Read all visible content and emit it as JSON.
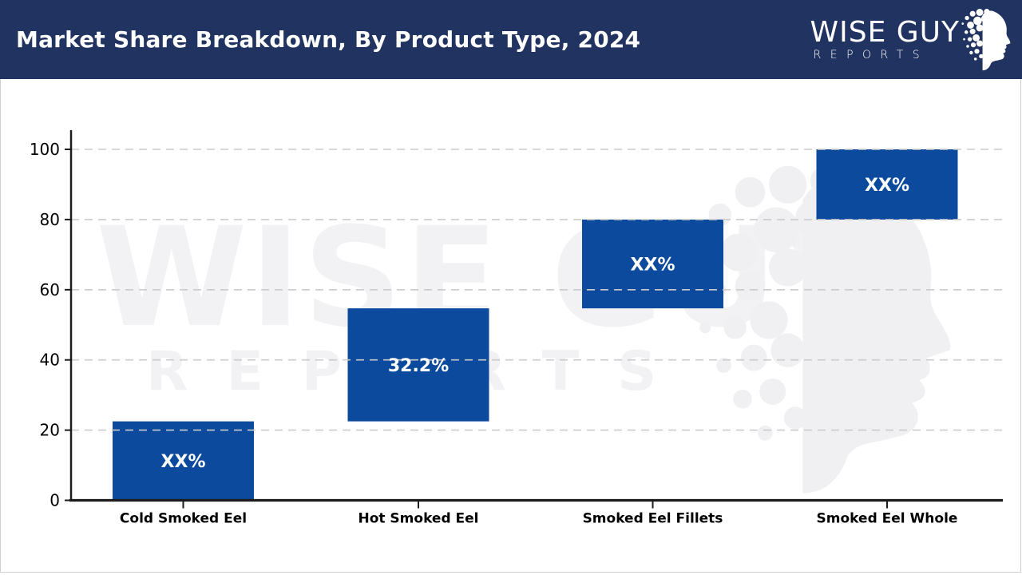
{
  "header": {
    "title": "Market Share Breakdown, By Product Type, 2024",
    "bg_color": "#213360",
    "logo": {
      "line1": "WISE GUY",
      "line2": "REPORTS",
      "head_icon": "dotted-head-profile"
    }
  },
  "watermark": {
    "line1": "WISE GUY",
    "line2": "REPORTS",
    "head_icon": "dotted-head-profile"
  },
  "chart_data": {
    "type": "bar",
    "subtype": "waterfall (floating segment bars summing to 100%)",
    "title": "Market Share Breakdown, By Product Type, 2024",
    "categories": [
      "Cold Smoked Eel",
      "Hot Smoked Eel",
      "Smoked Eel Fillets",
      "Smoked Eel Whole"
    ],
    "series": [
      {
        "name": "Market Share %",
        "segments": [
          {
            "category": "Cold Smoked Eel",
            "start": 0,
            "end": 22.5,
            "label": "XX%"
          },
          {
            "category": "Hot Smoked Eel",
            "start": 22.5,
            "end": 54.7,
            "label": "32.2%"
          },
          {
            "category": "Smoked Eel Fillets",
            "start": 54.7,
            "end": 80,
            "label": "XX%"
          },
          {
            "category": "Smoked Eel Whole",
            "start": 80,
            "end": 100,
            "label": "XX%"
          }
        ]
      }
    ],
    "xlabel": "",
    "ylabel": "",
    "ylim": [
      0,
      105
    ],
    "yticks": [
      0,
      20,
      40,
      60,
      80,
      100
    ],
    "grid": "horizontal dashed, drawn over bars",
    "legend_position": "none",
    "bar_color": "#0b4a9d",
    "bar_label_color": "#ffffff",
    "axis_color": "#1c1c1c",
    "grid_color": "#cbcbcb"
  }
}
